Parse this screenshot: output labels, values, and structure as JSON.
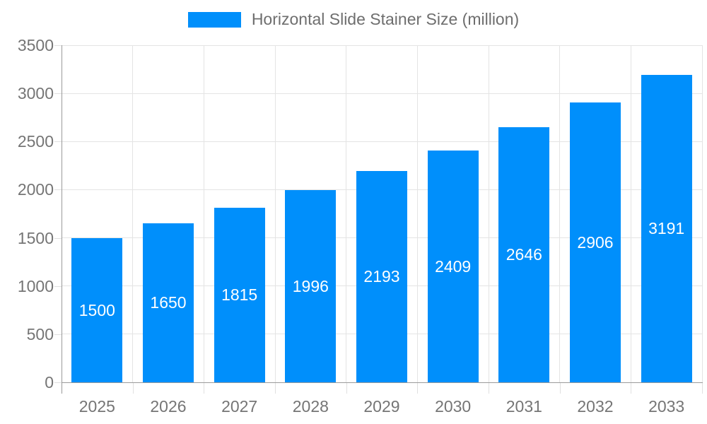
{
  "legend": {
    "label": "Horizontal Slide Stainer Size (million)"
  },
  "chart_data": {
    "type": "bar",
    "title": "",
    "xlabel": "",
    "ylabel": "",
    "categories": [
      "2025",
      "2026",
      "2027",
      "2028",
      "2029",
      "2030",
      "2031",
      "2032",
      "2033"
    ],
    "series": [
      {
        "name": "Horizontal Slide Stainer Size (million)",
        "values": [
          1500,
          1650,
          1815,
          1996,
          2193,
          2409,
          2646,
          2906,
          3191
        ]
      }
    ],
    "values": [
      1500,
      1650,
      1815,
      1996,
      2193,
      2409,
      2646,
      2906,
      3191
    ],
    "data_labels": [
      "1500",
      "1650",
      "1815",
      "1996",
      "2193",
      "2409",
      "2646",
      "2906",
      "3191"
    ],
    "ylim": [
      0,
      3500
    ],
    "yticks": [
      0,
      500,
      1000,
      1500,
      2000,
      2500,
      3000,
      3500
    ],
    "ytick_labels": [
      "0",
      "500",
      "1000",
      "1500",
      "2000",
      "2500",
      "3000",
      "3500"
    ],
    "grid": true,
    "legend_position": "top"
  },
  "colors": {
    "bar": "#008ffb",
    "bar_label": "#ffffff",
    "grid": "#e4e4e4",
    "axis": "#9a9a9a",
    "tick": "#e0e0e0",
    "tick_label": "#757575",
    "legend_text": "#6e6e6e",
    "background": "#ffffff"
  }
}
